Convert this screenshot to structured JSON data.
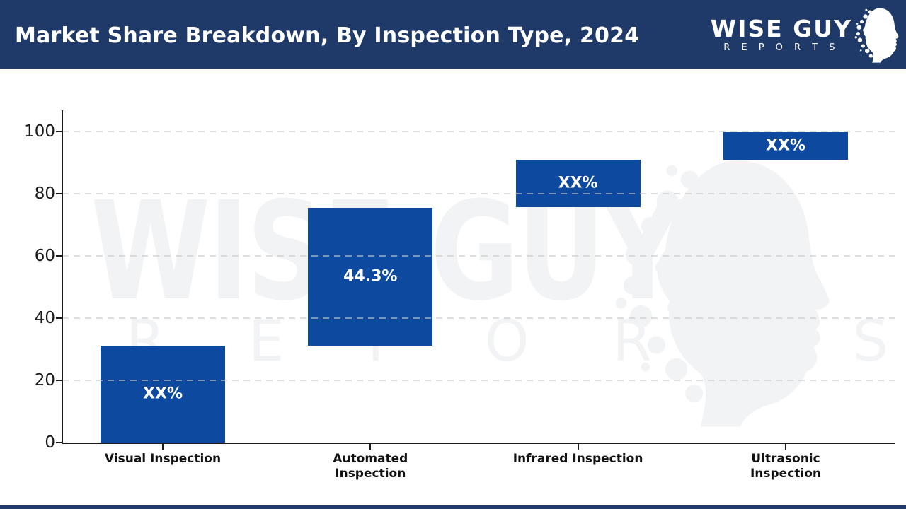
{
  "header": {
    "title": "Market Share Breakdown, By Inspection Type, 2024",
    "logo": {
      "line1": "WISE GUY",
      "line2": "R E P O R T S"
    }
  },
  "watermark": {
    "line1": "WISE GUY",
    "line2": "R E P O R T S"
  },
  "chart_data": {
    "type": "bar",
    "subtype": "waterfall",
    "title": "Market Share Breakdown, By Inspection Type, 2024",
    "categories": [
      "Visual Inspection",
      "Automated Inspection",
      "Infrared Inspection",
      "Ultrasonic Inspection"
    ],
    "segments": [
      {
        "from": 0,
        "to": 31.2,
        "label": "XX%"
      },
      {
        "from": 31.2,
        "to": 75.5,
        "label": "44.3%"
      },
      {
        "from": 75.7,
        "to": 90.9,
        "label": "XX%"
      },
      {
        "from": 90.9,
        "to": 99.8,
        "label": "XX%"
      }
    ],
    "yticks": [
      0,
      20,
      40,
      60,
      80,
      100
    ],
    "ylim": [
      0,
      107
    ],
    "grid": "horizontal-dashed",
    "legend": "none",
    "bar_color": "#0d4a9f",
    "bar_label_color": "#ffffff",
    "axis_color": "#1a1a1a"
  },
  "colors": {
    "header_bg": "#1f3a68",
    "footer_bg": "#1f3a68",
    "watermark": "#f2f3f5",
    "grid": "#e0e0e0"
  }
}
